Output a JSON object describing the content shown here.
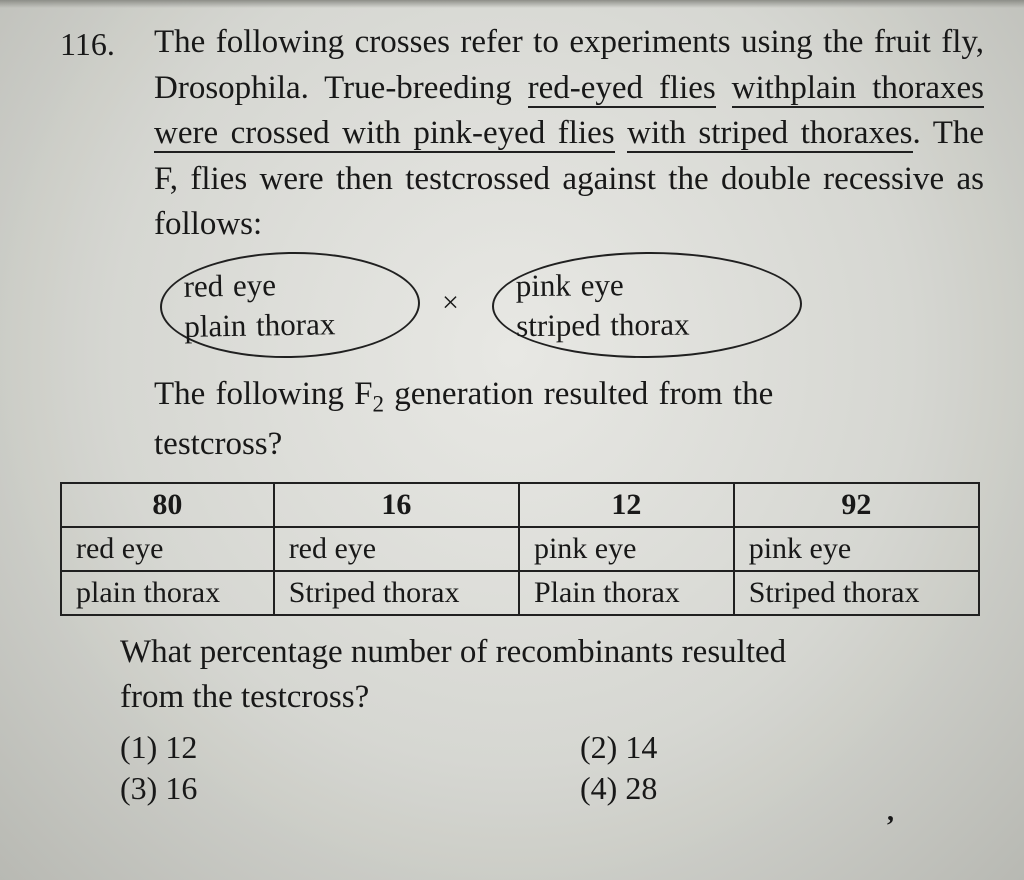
{
  "question_number": "116.",
  "para1": "The following crosses refer to experiments using the fruit fly, Drosophila. True-breeding ",
  "u1": "red-eyed flies",
  "para2_a": " ",
  "u2": "withplain thoraxes were crossed with pink-eyed flies",
  "para3_a": " ",
  "u3": "with striped thoraxes",
  "para3_b": ". The F, flies were then testcrossed against the double recessive as follows:",
  "cross_left_l1": "red eye",
  "cross_left_l2": "plain thorax",
  "cross_x": "×",
  "cross_right_l1": "pink eye",
  "cross_right_l2": "striped thorax",
  "f2_a": "The following F",
  "f2_sub": "2",
  "f2_b": " generation resulted from the",
  "tcq": "testcross?",
  "table": {
    "columns": 4,
    "col_widths_pct": [
      22,
      26,
      26,
      26
    ],
    "rows": [
      [
        "80",
        "16",
        "12",
        "92"
      ],
      [
        "red eye",
        "red eye",
        "pink eye",
        "pink eye"
      ],
      [
        "plain thorax",
        "Striped thorax",
        "Plain thorax",
        "Striped thorax"
      ]
    ],
    "border_color": "#222222",
    "fontsize": 30
  },
  "question2_a": "What percentage number of recombinants resulted",
  "question2_b": "from the testcross?",
  "options": {
    "o1": "(1)  12",
    "o2": "(2)  14",
    "o3": "(3)  16",
    "o4": "(4)  28"
  },
  "colors": {
    "text": "#1a1a1a",
    "background_center": "#e6e6e2",
    "background_edge": "#b7b8b2",
    "table_border": "#222222"
  }
}
